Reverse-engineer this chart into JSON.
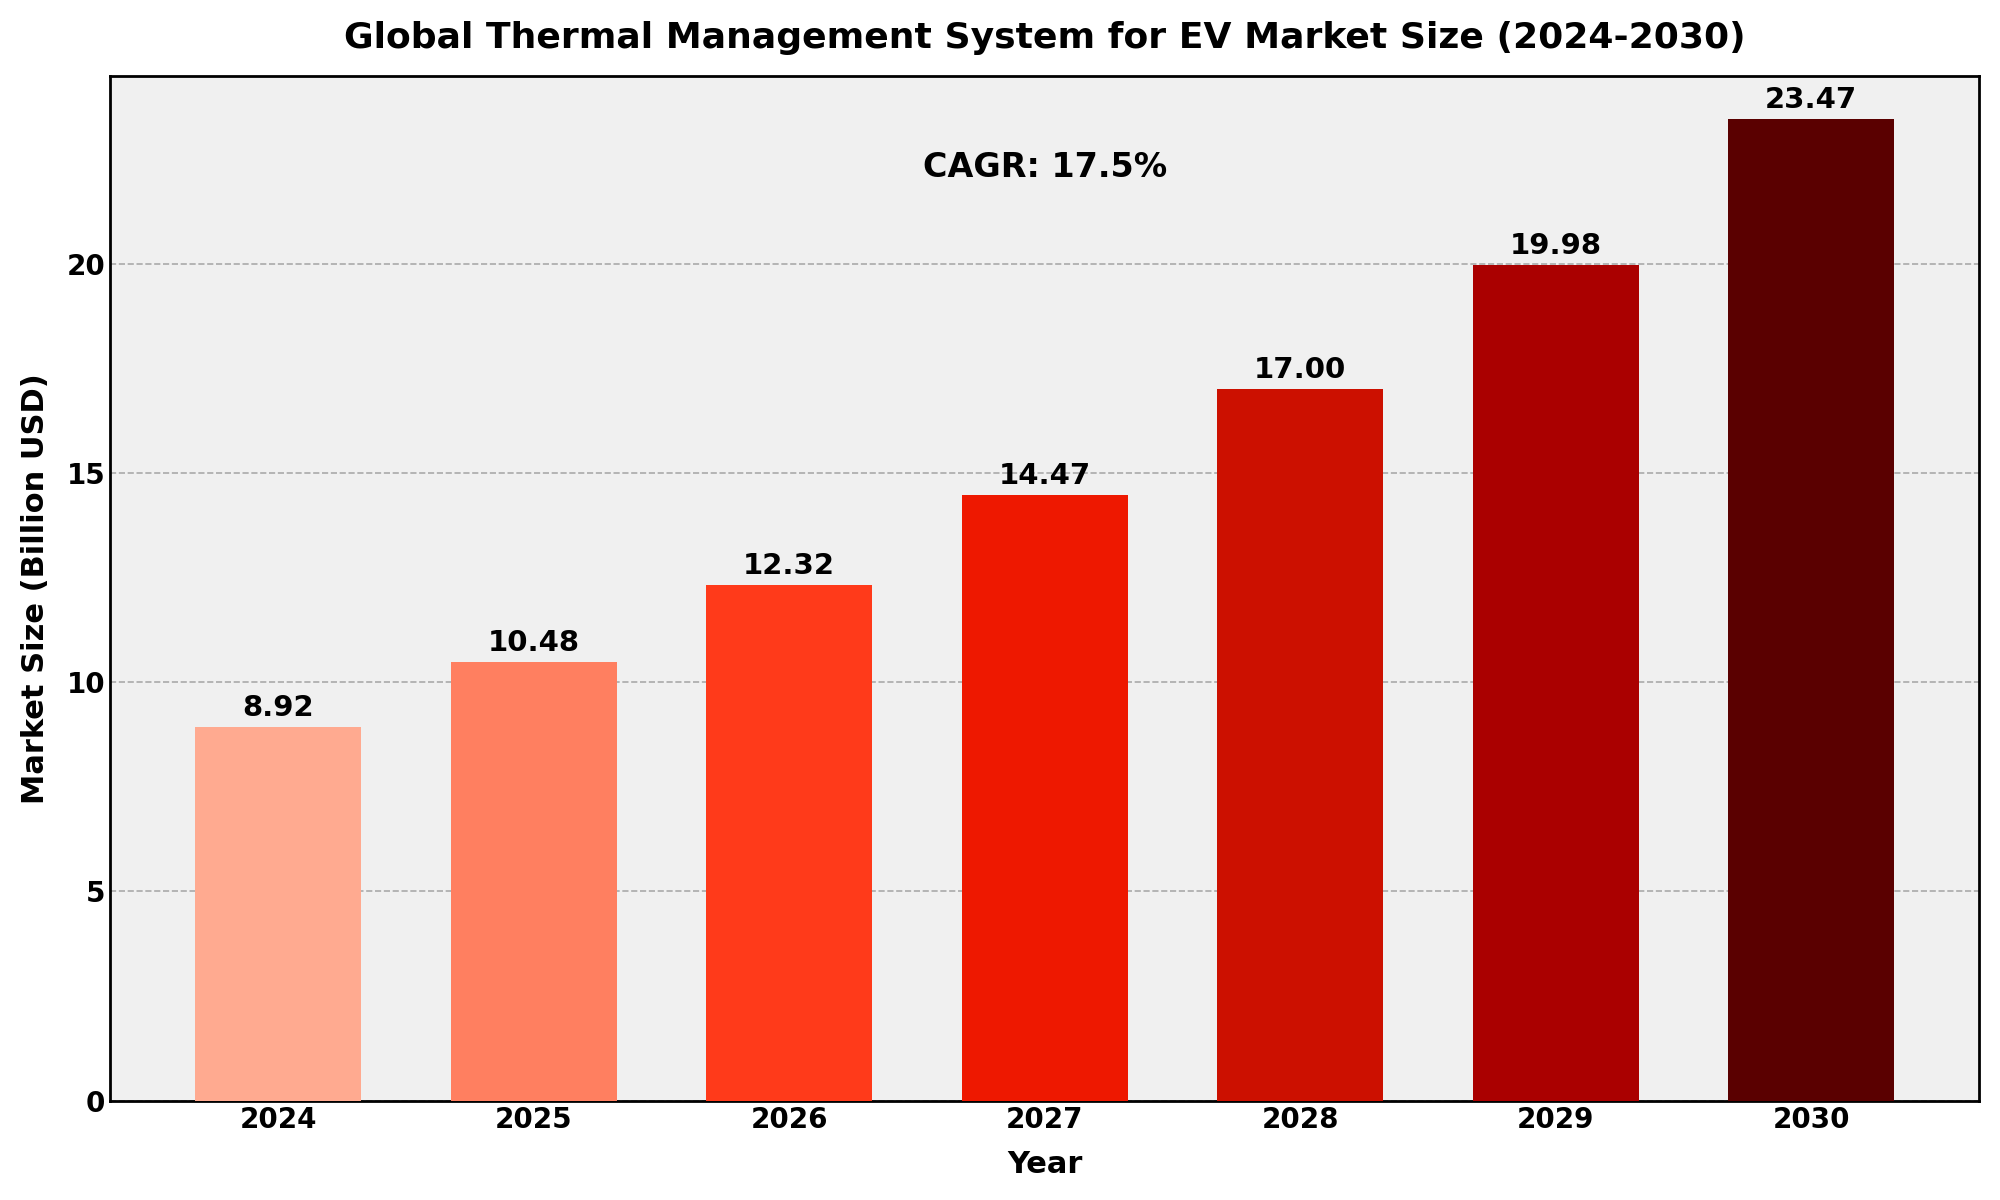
{
  "title": "Global Thermal Management System for EV Market Size (2024-2030)",
  "xlabel": "Year",
  "ylabel": "Market Size (Billion USD)",
  "years": [
    "2024",
    "2025",
    "2026",
    "2027",
    "2028",
    "2029",
    "2030"
  ],
  "values": [
    8.92,
    10.48,
    12.32,
    14.47,
    17.0,
    19.98,
    23.47
  ],
  "bar_colors": [
    "#FFAA90",
    "#FF7F60",
    "#FF3A1A",
    "#EE1800",
    "#CC1000",
    "#AA0000",
    "#5A0000"
  ],
  "cagr_text": "CAGR: 17.5%",
  "ylim": [
    0,
    24.5
  ],
  "yticks": [
    0,
    5,
    10,
    15,
    20
  ],
  "grid_color": "#AAAAAA",
  "plot_bg_color": "#F0F0F0",
  "fig_bg_color": "#FFFFFF",
  "title_fontsize": 26,
  "label_fontsize": 22,
  "tick_fontsize": 20,
  "value_fontsize": 21,
  "cagr_fontsize": 24,
  "bar_width": 0.65,
  "spine_linewidth": 2.0
}
